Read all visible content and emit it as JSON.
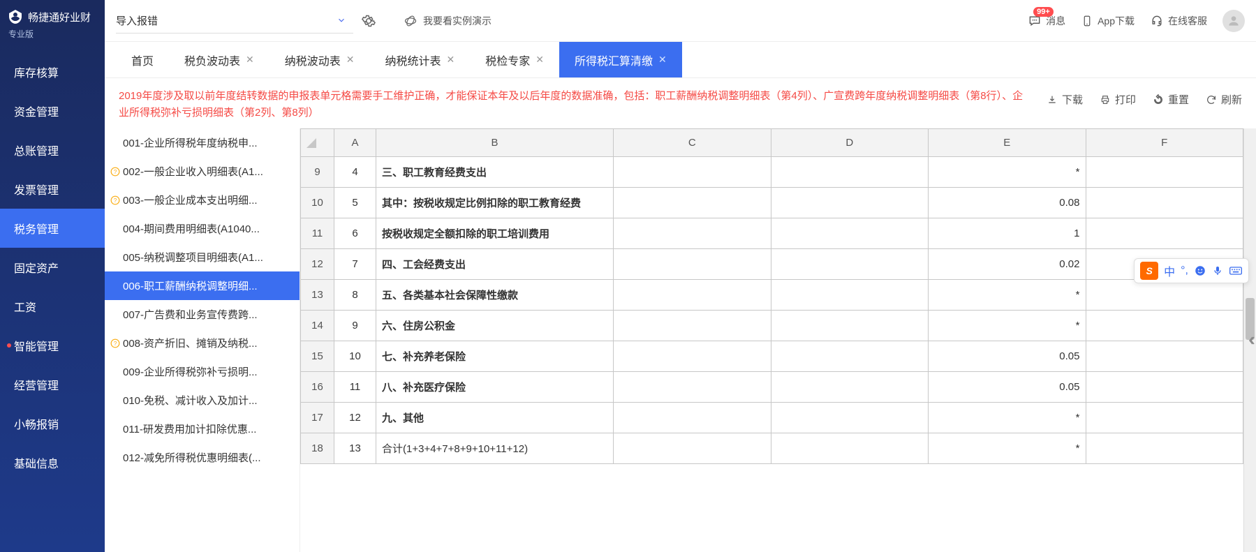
{
  "brand": {
    "name": "畅捷通好业财",
    "edition": "专业版"
  },
  "topbar": {
    "search_value": "导入报错",
    "demo_text": "我要看实例演示",
    "msg_label": "消息",
    "msg_badge": "99+",
    "app_label": "App下载",
    "service_label": "在线客服"
  },
  "sidebar": {
    "items": [
      {
        "label": "库存核算",
        "active": false,
        "dot": false
      },
      {
        "label": "资金管理",
        "active": false,
        "dot": false
      },
      {
        "label": "总账管理",
        "active": false,
        "dot": false
      },
      {
        "label": "发票管理",
        "active": false,
        "dot": false
      },
      {
        "label": "税务管理",
        "active": true,
        "dot": false
      },
      {
        "label": "固定资产",
        "active": false,
        "dot": false
      },
      {
        "label": "工资",
        "active": false,
        "dot": false
      },
      {
        "label": "智能管理",
        "active": false,
        "dot": true
      },
      {
        "label": "经营管理",
        "active": false,
        "dot": false
      },
      {
        "label": "小畅报销",
        "active": false,
        "dot": false
      },
      {
        "label": "基础信息",
        "active": false,
        "dot": false
      }
    ]
  },
  "tabs": [
    {
      "label": "首页",
      "closable": false,
      "active": false
    },
    {
      "label": "税负波动表",
      "closable": true,
      "active": false
    },
    {
      "label": "纳税波动表",
      "closable": true,
      "active": false
    },
    {
      "label": "纳税统计表",
      "closable": true,
      "active": false
    },
    {
      "label": "税检专家",
      "closable": true,
      "active": false
    },
    {
      "label": "所得税汇算清缴",
      "closable": true,
      "active": true
    }
  ],
  "notice": "2019年度涉及取以前年度结转数据的申报表单元格需要手工维护正确，才能保证本年及以后年度的数据准确，包括：职工薪酬纳税调整明细表（第4列）、广宣费跨年度纳税调整明细表（第8行）、企业所得税弥补亏损明细表（第2列、第8列）",
  "actions": {
    "download": "下载",
    "print": "打印",
    "reset": "重置",
    "refresh": "刷新"
  },
  "form_list": [
    {
      "label": "001-企业所得税年度纳税申...",
      "warn": false,
      "active": false
    },
    {
      "label": "002-一般企业收入明细表(A1...",
      "warn": true,
      "active": false
    },
    {
      "label": "003-一般企业成本支出明细...",
      "warn": true,
      "active": false
    },
    {
      "label": "004-期间费用明细表(A1040...",
      "warn": false,
      "active": false
    },
    {
      "label": "005-纳税调整项目明细表(A1...",
      "warn": false,
      "active": false
    },
    {
      "label": "006-职工薪酬纳税调整明细...",
      "warn": false,
      "active": true
    },
    {
      "label": "007-广告费和业务宣传费跨...",
      "warn": false,
      "active": false
    },
    {
      "label": "008-资产折旧、摊销及纳税...",
      "warn": true,
      "active": false
    },
    {
      "label": "009-企业所得税弥补亏损明...",
      "warn": false,
      "active": false
    },
    {
      "label": "010-免税、减计收入及加计...",
      "warn": false,
      "active": false
    },
    {
      "label": "011-研发费用加计扣除优惠...",
      "warn": false,
      "active": false
    },
    {
      "label": "012-减免所得税优惠明细表(...",
      "warn": false,
      "active": false
    }
  ],
  "sheet": {
    "columns": [
      "A",
      "B",
      "C",
      "D",
      "E",
      "F"
    ],
    "rows": [
      {
        "num": "9",
        "a": "4",
        "b": "三、职工教育经费支出",
        "b_bold": true,
        "e": "*"
      },
      {
        "num": "10",
        "a": "5",
        "b": "其中：按税收规定比例扣除的职工教育经费",
        "b_bold": true,
        "e": "0.08"
      },
      {
        "num": "11",
        "a": "6",
        "b": "按税收规定全额扣除的职工培训费用",
        "b_bold": true,
        "e": "1"
      },
      {
        "num": "12",
        "a": "7",
        "b": "四、工会经费支出",
        "b_bold": true,
        "e": "0.02"
      },
      {
        "num": "13",
        "a": "8",
        "b": "五、各类基本社会保障性缴款",
        "b_bold": true,
        "e": "*"
      },
      {
        "num": "14",
        "a": "9",
        "b": "六、住房公积金",
        "b_bold": true,
        "e": "*"
      },
      {
        "num": "15",
        "a": "10",
        "b": "七、补充养老保险",
        "b_bold": true,
        "e": "0.05"
      },
      {
        "num": "16",
        "a": "11",
        "b": "八、补充医疗保险",
        "b_bold": true,
        "e": "0.05"
      },
      {
        "num": "17",
        "a": "12",
        "b": "九、其他",
        "b_bold": true,
        "e": "*"
      },
      {
        "num": "18",
        "a": "13",
        "b": "合计(1+3+4+7+8+9+10+11+12)",
        "b_bold": false,
        "e": "*"
      }
    ]
  },
  "ime": {
    "lang": "中"
  }
}
